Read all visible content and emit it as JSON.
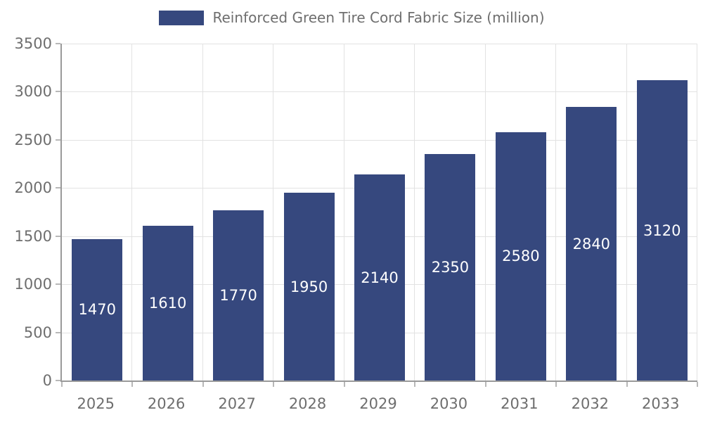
{
  "legend": {
    "series_label": "Reinforced Green Tire Cord Fabric Size (million)"
  },
  "chart_data": {
    "type": "bar",
    "title": "Reinforced Green Tire Cord Fabric Size (million)",
    "categories": [
      "2025",
      "2026",
      "2027",
      "2028",
      "2029",
      "2030",
      "2031",
      "2032",
      "2033"
    ],
    "values": [
      1470,
      1610,
      1770,
      1950,
      2140,
      2350,
      2580,
      2840,
      3120
    ],
    "series": [
      {
        "name": "Reinforced Green Tire Cord Fabric Size (million)",
        "values": [
          1470,
          1610,
          1770,
          1950,
          2140,
          2350,
          2580,
          2840,
          3120
        ]
      }
    ],
    "value_labels_shown": true,
    "xlabel": "",
    "ylabel": "",
    "ylim": [
      0,
      3500
    ],
    "yticks": [
      0,
      500,
      1000,
      1500,
      2000,
      2500,
      3000,
      3500
    ],
    "grid": true,
    "legend_position": "top-center",
    "colors": {
      "bar": "#36487E",
      "value_label": "#FFFFFF",
      "axis_text": "#6E6E6E",
      "legend_text": "#6E6E6E",
      "grid_line": "#E2E2E2",
      "axis_line": "#9A9A9A",
      "tick_mark": "#B8B8B8",
      "background": "#FFFFFF"
    }
  }
}
